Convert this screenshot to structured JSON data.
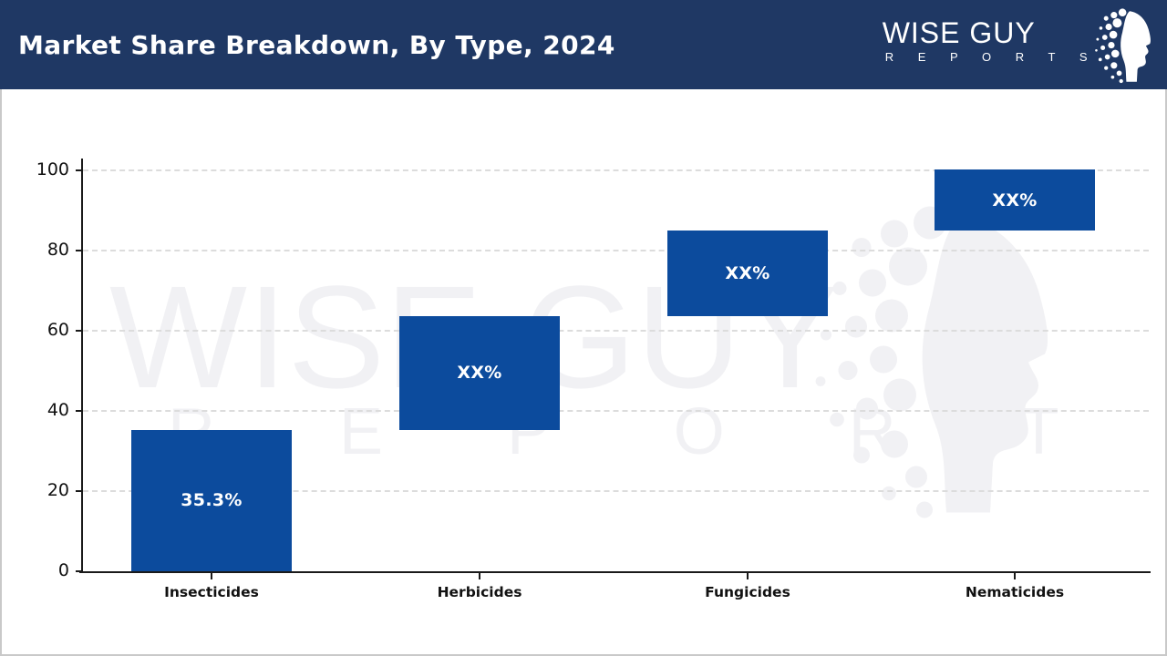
{
  "header": {
    "title": "Market Share Breakdown, By Type, 2024",
    "bg_color": "#1F3864",
    "logo": {
      "line1": "WISE GUY",
      "line2": "R E P O R T S"
    }
  },
  "watermark": {
    "line1": "WISE GUY",
    "line2": "R E P O R T S"
  },
  "chart_data": {
    "type": "bar",
    "subtype": "floating-waterfall-segments",
    "title": "Market Share Breakdown, By Type, 2024",
    "categories": [
      "Insecticides",
      "Herbicides",
      "Fungicides",
      "Nematicides"
    ],
    "segments": [
      {
        "category": "Insecticides",
        "from": 0,
        "to": 35.3,
        "value": 35.3,
        "label": "35.3%"
      },
      {
        "category": "Herbicides",
        "from": 35.3,
        "to": 63.6,
        "value": 28.3,
        "label": "XX%"
      },
      {
        "category": "Fungicides",
        "from": 63.6,
        "to": 85.0,
        "value": 21.4,
        "label": "XX%"
      },
      {
        "category": "Nematicides",
        "from": 85.0,
        "to": 100.2,
        "value": 15.2,
        "label": "XX%"
      }
    ],
    "xlabel": "",
    "ylabel": "",
    "yticks": [
      0,
      20,
      40,
      60,
      80,
      100
    ],
    "ylim": [
      0,
      103
    ],
    "grid": "horizontal-dashed",
    "legend": "none",
    "bar_color": "#0C4B9D",
    "bar_label_color": "#FFFFFF",
    "axis_color": "#1A1A1A",
    "gridline_color": "#DCDCDC"
  }
}
